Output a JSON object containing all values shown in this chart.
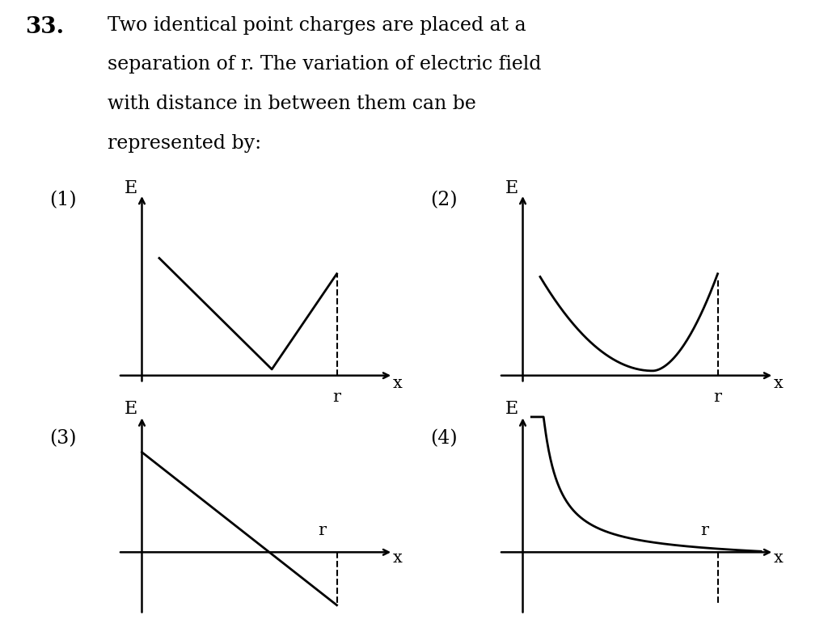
{
  "background_color": "#ffffff",
  "text_color": "#000000",
  "line_color": "#000000",
  "line_width": 2.0,
  "axis_lw": 1.8,
  "dashed_lw": 1.5,
  "font_size_question": 17,
  "font_size_num": 17,
  "font_size_axis": 15,
  "font_size_33": 20,
  "question_lines": [
    "Two identical point charges are placed at a",
    "separation of r. The variation of electric field",
    "with distance in between them can be",
    "represented by:"
  ]
}
